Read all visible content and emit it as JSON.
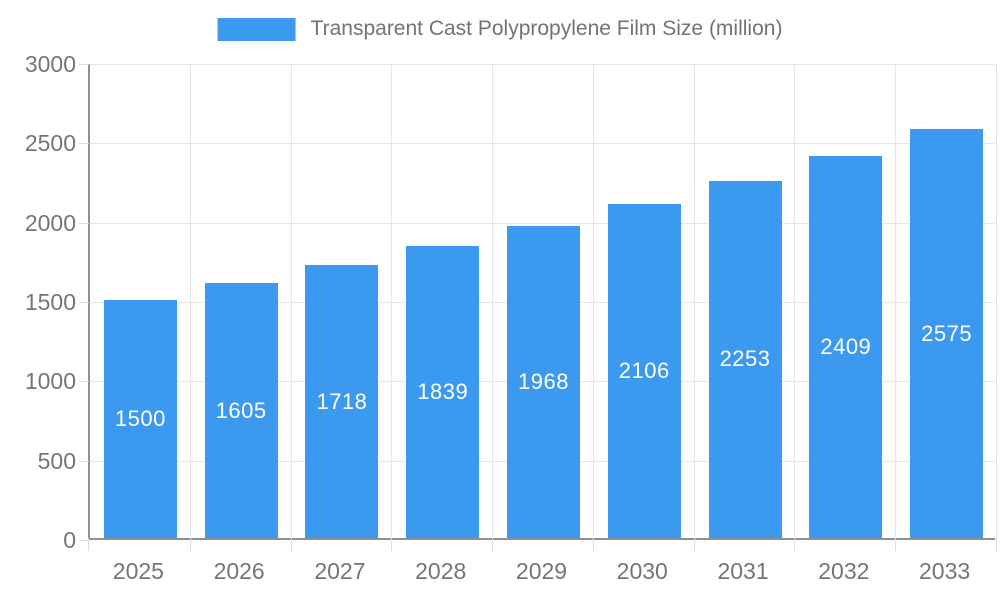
{
  "legend": {
    "label": "Transparent Cast Polypropylene Film Size (million)"
  },
  "chart_data": {
    "type": "bar",
    "title": "Transparent Cast Polypropylene Film Size (million)",
    "categories": [
      "2025",
      "2026",
      "2027",
      "2028",
      "2029",
      "2030",
      "2031",
      "2032",
      "2033"
    ],
    "values": [
      1500,
      1605,
      1718,
      1839,
      1968,
      2106,
      2253,
      2409,
      2575
    ],
    "xlabel": "",
    "ylabel": "",
    "ylim": [
      0,
      3000
    ],
    "y_tick_step": 500,
    "y_tick_labels": [
      "0",
      "500",
      "1000",
      "1500",
      "2000",
      "2500",
      "3000"
    ],
    "grid": true,
    "legend_position": "top",
    "bar_value_labels": "inside-center",
    "colors": {
      "bar": "#3b99f0",
      "bar_label": "#ffffff",
      "axis_line": "#8f8f8f",
      "grid_line": "#e6e6e6",
      "tick": "#dcdcdc",
      "axis_label": "#757575",
      "legend_text": "#737373"
    }
  }
}
